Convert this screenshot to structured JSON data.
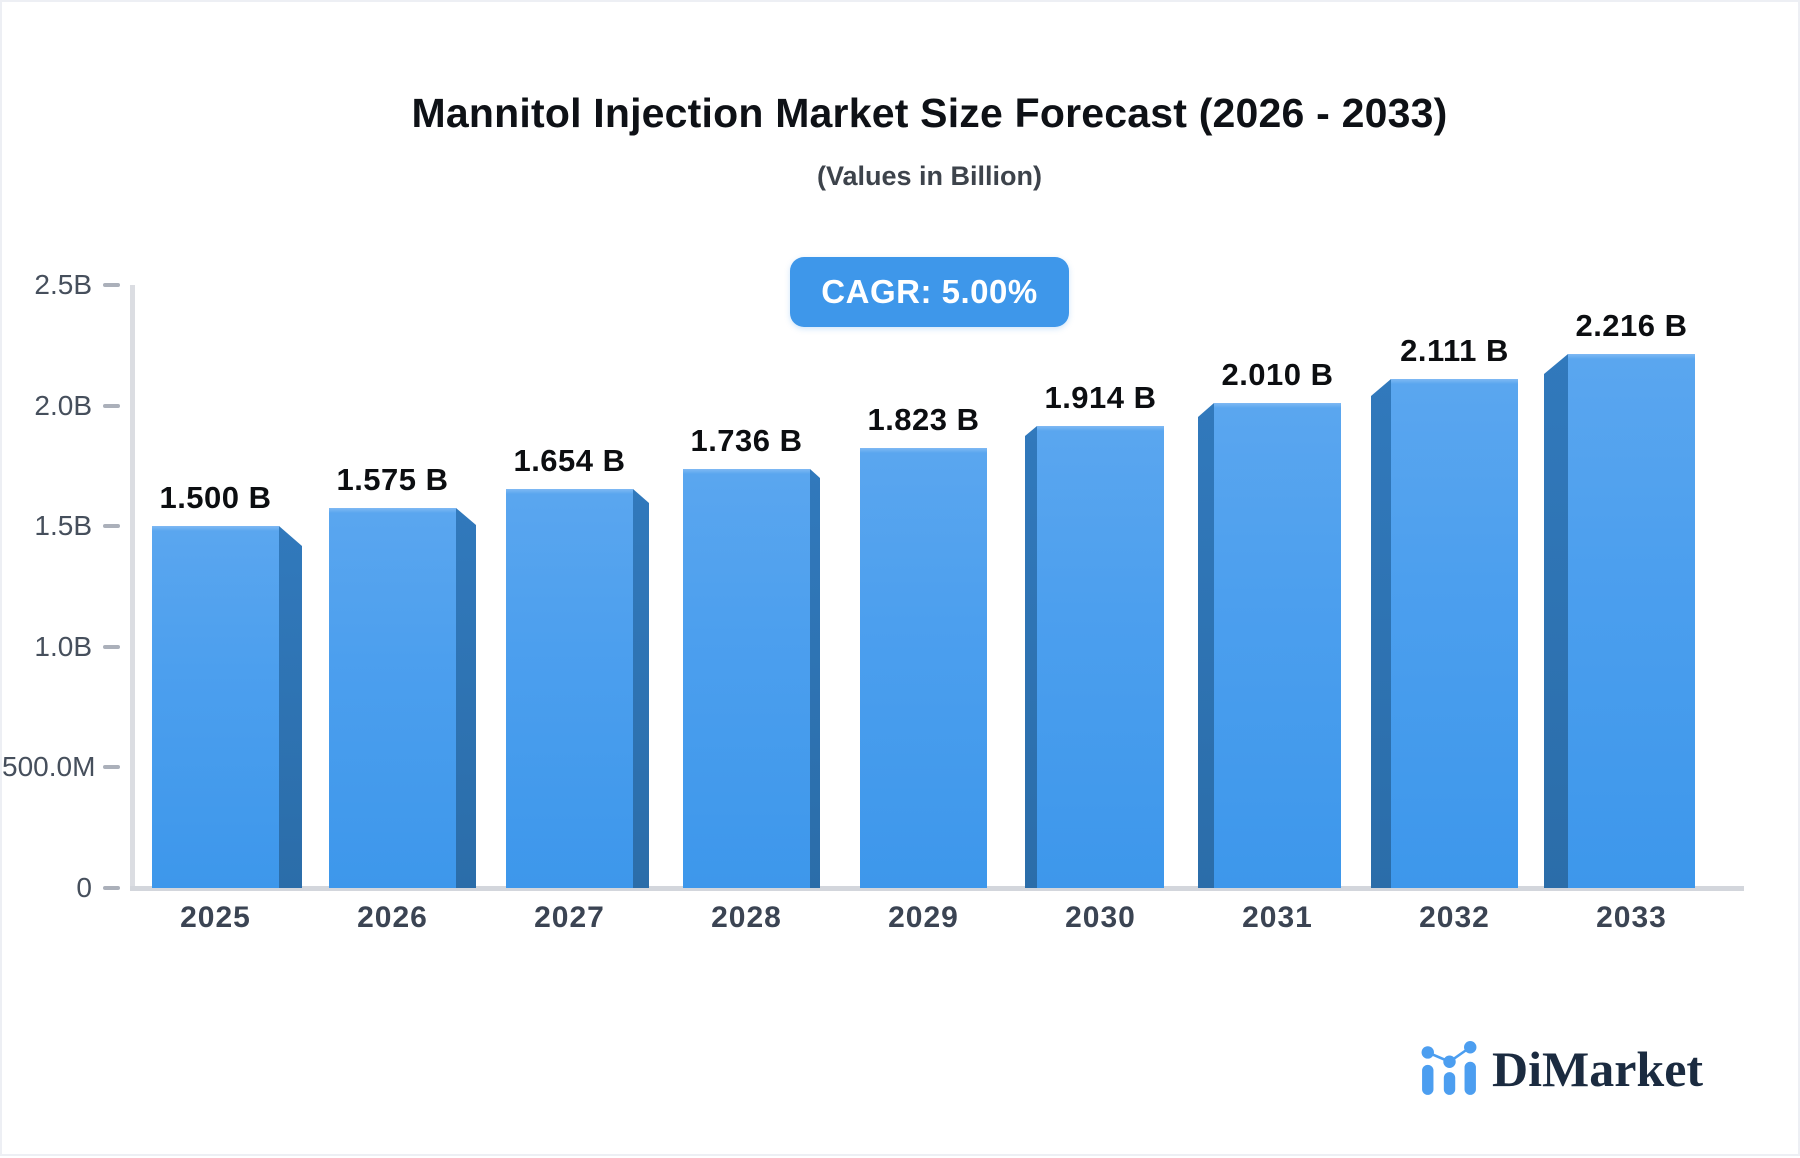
{
  "title": "Mannitol Injection Market Size Forecast (2026 - 2033)",
  "subtitle": "(Values in Billion)",
  "cagr_badge": "CAGR: 5.00%",
  "logo": {
    "text": "DiMarket",
    "icon": "bar-chart-icon"
  },
  "colors": {
    "bar_face": "#3d97eb",
    "bar_face_light": "#5aa6ef",
    "bar_side": "#2e74b4",
    "badge_blue": "#3e97ea",
    "axis_gray": "#d3d6dc",
    "label_dark": "#0c0e11",
    "tick_label": "#464f5c",
    "logo_navy": "#1b2b40",
    "logo_blue": "#4c9ef0"
  },
  "chart_data": {
    "type": "bar",
    "title": "Mannitol Injection Market Size Forecast (2026 - 2033)",
    "subtitle": "(Values in Billion)",
    "categories": [
      "2025",
      "2026",
      "2027",
      "2028",
      "2029",
      "2030",
      "2031",
      "2032",
      "2033"
    ],
    "values": [
      1.5,
      1.575,
      1.654,
      1.736,
      1.823,
      1.914,
      2.01,
      2.111,
      2.216
    ],
    "value_labels": [
      "1.500 B",
      "1.575 B",
      "1.654 B",
      "1.736 B",
      "1.823 B",
      "1.914 B",
      "2.010 B",
      "2.111 B",
      "2.216 B"
    ],
    "unit": "Billion",
    "cagr": "5.00%",
    "xlabel": "",
    "ylabel": "",
    "ylim": [
      0,
      2.5
    ],
    "y_ticks": [
      "2.5B",
      "2.0B",
      "1.5B",
      "1.0B",
      "500.0M",
      "0"
    ],
    "grid": false,
    "legend": false,
    "style": "3d-blue-bars"
  }
}
